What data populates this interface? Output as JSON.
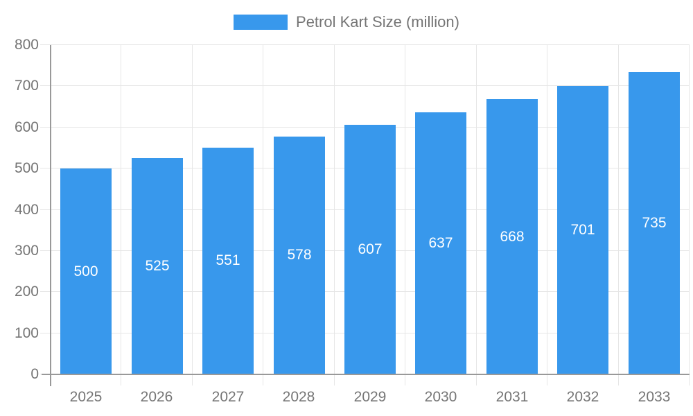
{
  "legend": {
    "label": "Petrol Kart Size (million)",
    "swatch_color": "#3898ec"
  },
  "chart_data": {
    "type": "bar",
    "title": "Petrol Kart Size (million)",
    "categories": [
      "2025",
      "2026",
      "2027",
      "2028",
      "2029",
      "2030",
      "2031",
      "2032",
      "2033"
    ],
    "values": [
      500,
      525,
      551,
      578,
      607,
      637,
      668,
      701,
      735
    ],
    "series_name": "Petrol Kart Size (million)",
    "xlabel": "",
    "ylabel": "",
    "ylim": [
      0,
      800
    ],
    "y_ticks": [
      0,
      100,
      200,
      300,
      400,
      500,
      600,
      700,
      800
    ],
    "grid": true,
    "legend_position": "top",
    "colors": {
      "bar": "#3898ec",
      "bar_value_label": "#ffffff",
      "axis_text": "#757575",
      "gridline": "#e6e6e6",
      "axis_line": "#999999"
    }
  }
}
